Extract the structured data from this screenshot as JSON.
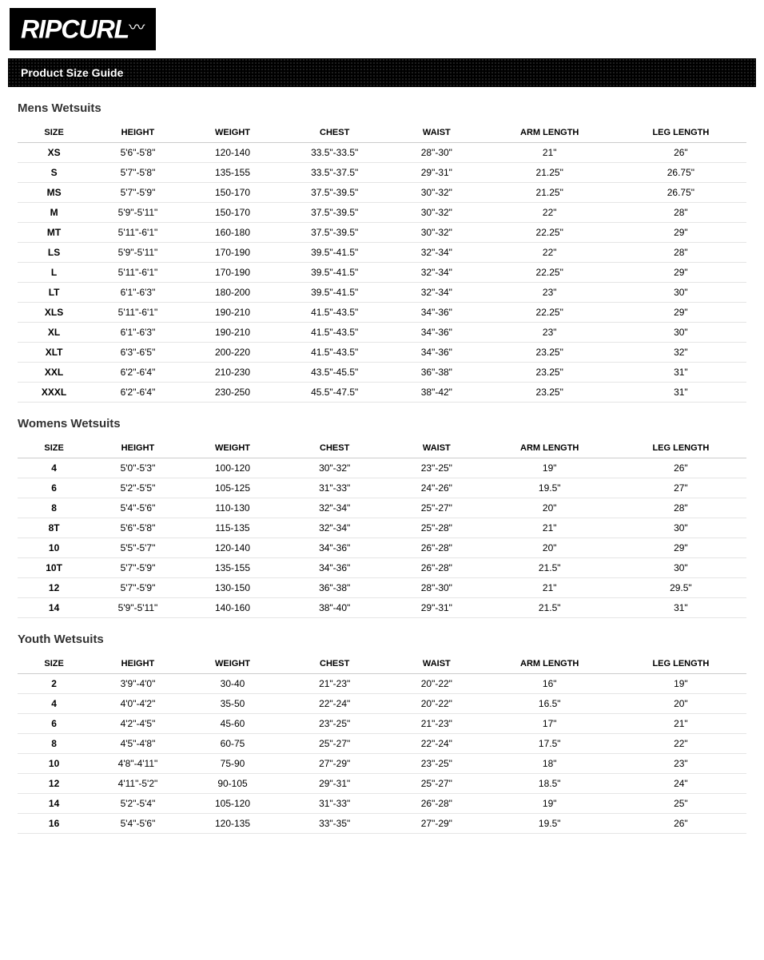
{
  "brand": "RIPCURL",
  "header": "Product Size Guide",
  "columns": [
    "SIZE",
    "HEIGHT",
    "WEIGHT",
    "CHEST",
    "WAIST",
    "ARM LENGTH",
    "LEG LENGTH"
  ],
  "sections": [
    {
      "title": "Mens Wetsuits",
      "rows": [
        [
          "XS",
          "5'6\"-5'8\"",
          "120-140",
          "33.5\"-33.5\"",
          "28\"-30\"",
          "21\"",
          "26\""
        ],
        [
          "S",
          "5'7\"-5'8\"",
          "135-155",
          "33.5\"-37.5\"",
          "29\"-31\"",
          "21.25\"",
          "26.75\""
        ],
        [
          "MS",
          "5'7\"-5'9\"",
          "150-170",
          "37.5\"-39.5\"",
          "30\"-32\"",
          "21.25\"",
          "26.75\""
        ],
        [
          "M",
          "5'9\"-5'11\"",
          "150-170",
          "37.5\"-39.5\"",
          "30\"-32\"",
          "22\"",
          "28\""
        ],
        [
          "MT",
          "5'11\"-6'1\"",
          "160-180",
          "37.5\"-39.5\"",
          "30\"-32\"",
          "22.25\"",
          "29\""
        ],
        [
          "LS",
          "5'9\"-5'11\"",
          "170-190",
          "39.5\"-41.5\"",
          "32\"-34\"",
          "22\"",
          "28\""
        ],
        [
          "L",
          "5'11\"-6'1\"",
          "170-190",
          "39.5\"-41.5\"",
          "32\"-34\"",
          "22.25\"",
          "29\""
        ],
        [
          "LT",
          "6'1\"-6'3\"",
          "180-200",
          "39.5\"-41.5\"",
          "32\"-34\"",
          "23\"",
          "30\""
        ],
        [
          "XLS",
          "5'11\"-6'1\"",
          "190-210",
          "41.5\"-43.5\"",
          "34\"-36\"",
          "22.25\"",
          "29\""
        ],
        [
          "XL",
          "6'1\"-6'3\"",
          "190-210",
          "41.5\"-43.5\"",
          "34\"-36\"",
          "23\"",
          "30\""
        ],
        [
          "XLT",
          "6'3\"-6'5\"",
          "200-220",
          "41.5\"-43.5\"",
          "34\"-36\"",
          "23.25\"",
          "32\""
        ],
        [
          "XXL",
          "6'2\"-6'4\"",
          "210-230",
          "43.5\"-45.5\"",
          "36\"-38\"",
          "23.25\"",
          "31\""
        ],
        [
          "XXXL",
          "6'2\"-6'4\"",
          "230-250",
          "45.5\"-47.5\"",
          "38\"-42\"",
          "23.25\"",
          "31\""
        ]
      ]
    },
    {
      "title": "Womens Wetsuits",
      "rows": [
        [
          "4",
          "5'0\"-5'3\"",
          "100-120",
          "30\"-32\"",
          "23\"-25\"",
          "19\"",
          "26\""
        ],
        [
          "6",
          "5'2\"-5'5\"",
          "105-125",
          "31\"-33\"",
          "24\"-26\"",
          "19.5\"",
          "27\""
        ],
        [
          "8",
          "5'4\"-5'6\"",
          "110-130",
          "32\"-34\"",
          "25\"-27\"",
          "20\"",
          "28\""
        ],
        [
          "8T",
          "5'6\"-5'8\"",
          "115-135",
          "32\"-34\"",
          "25\"-28\"",
          "21\"",
          "30\""
        ],
        [
          "10",
          "5'5\"-5'7\"",
          "120-140",
          "34\"-36\"",
          "26\"-28\"",
          "20\"",
          "29\""
        ],
        [
          "10T",
          "5'7\"-5'9\"",
          "135-155",
          "34\"-36\"",
          "26\"-28\"",
          "21.5\"",
          "30\""
        ],
        [
          "12",
          "5'7\"-5'9\"",
          "130-150",
          "36\"-38\"",
          "28\"-30\"",
          "21\"",
          "29.5\""
        ],
        [
          "14",
          "5'9\"-5'11\"",
          "140-160",
          "38\"-40\"",
          "29\"-31\"",
          "21.5\"",
          "31\""
        ]
      ]
    },
    {
      "title": "Youth Wetsuits",
      "rows": [
        [
          "2",
          "3'9\"-4'0\"",
          "30-40",
          "21\"-23\"",
          "20\"-22\"",
          "16\"",
          "19\""
        ],
        [
          "4",
          "4'0\"-4'2\"",
          "35-50",
          "22\"-24\"",
          "20\"-22\"",
          "16.5\"",
          "20\""
        ],
        [
          "6",
          "4'2\"-4'5\"",
          "45-60",
          "23\"-25\"",
          "21\"-23\"",
          "17\"",
          "21\""
        ],
        [
          "8",
          "4'5\"-4'8\"",
          "60-75",
          "25\"-27\"",
          "22\"-24\"",
          "17.5\"",
          "22\""
        ],
        [
          "10",
          "4'8\"-4'11\"",
          "75-90",
          "27\"-29\"",
          "23\"-25\"",
          "18\"",
          "23\""
        ],
        [
          "12",
          "4'11\"-5'2\"",
          "90-105",
          "29\"-31\"",
          "25\"-27\"",
          "18.5\"",
          "24\""
        ],
        [
          "14",
          "5'2\"-5'4\"",
          "105-120",
          "31\"-33\"",
          "26\"-28\"",
          "19\"",
          "25\""
        ],
        [
          "16",
          "5'4\"-5'6\"",
          "120-135",
          "33\"-35\"",
          "27\"-29\"",
          "19.5\"",
          "26\""
        ]
      ]
    }
  ]
}
